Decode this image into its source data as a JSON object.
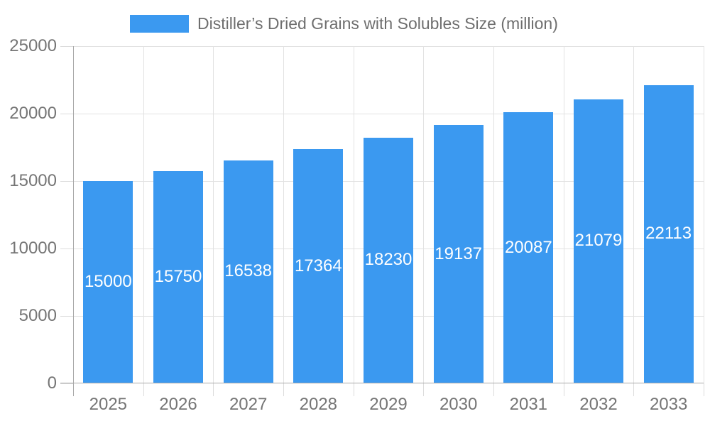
{
  "chart_data": {
    "type": "bar",
    "title": "Distiller’s Dried Grains with Solubles Size (million)",
    "categories": [
      "2025",
      "2026",
      "2027",
      "2028",
      "2029",
      "2030",
      "2031",
      "2032",
      "2033"
    ],
    "series": [
      {
        "name": "Distiller’s Dried Grains with Solubles Size (million)",
        "values": [
          15000,
          15750,
          16538,
          17364,
          18230,
          19137,
          20087,
          21079,
          22113
        ]
      }
    ],
    "xlabel": "",
    "ylabel": "",
    "ylim": [
      0,
      25000
    ],
    "ytick_step": 5000,
    "ytick_labels": [
      "0",
      "5000",
      "10000",
      "15000",
      "20000",
      "25000"
    ],
    "grid": true,
    "legend_position": "top",
    "value_labels_position": "inside-center"
  },
  "colors": {
    "bar": "#3b99f0",
    "grid_line": "#e2e2e2",
    "axis_line": "#a9a9a9",
    "tick_mark": "#dcdcdc",
    "tick_label": "#757575",
    "title_text": "#6e6e6e",
    "bar_label": "#ffffff",
    "background": "#ffffff"
  }
}
